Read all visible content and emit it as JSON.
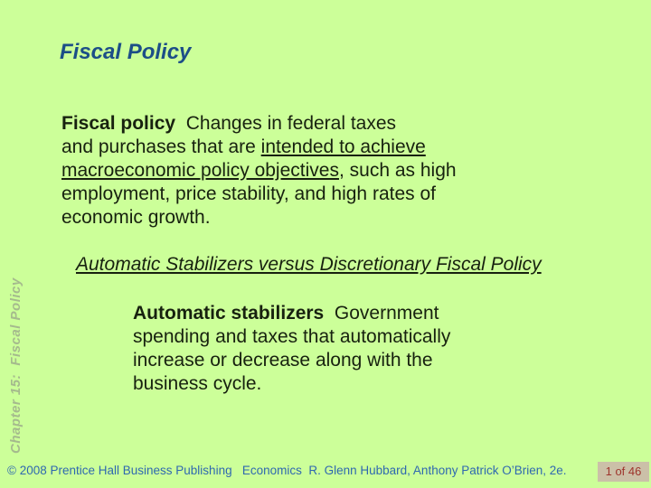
{
  "slide": {
    "title": "Fiscal Policy",
    "definition_fiscal": {
      "term": "Fiscal policy",
      "before_underline": "  Changes in federal taxes\nand purchases that are ",
      "underlined": "intended to achieve\nmacroeconomic policy objectives",
      "after_underline": ", such as high\nemployment, price stability, and high rates of\neconomic growth."
    },
    "section_heading": "Automatic Stabilizers versus Discretionary Fiscal Policy",
    "definition_stabilizers": {
      "term": "Automatic stabilizers",
      "body": "  Government\nspending and taxes that automatically\nincrease or decrease along with the\nbusiness cycle."
    },
    "chapter_label": "Chapter 15:  Fiscal Policy",
    "footer": {
      "copyright": "© 2008 Prentice Hall Business Publishing   Economics  R. Glenn Hubbard, Anthony Patrick O’Brien, 2e.",
      "page_indicator": "1 of 46"
    },
    "colors": {
      "background": "#CCFF99",
      "title": "#1C4E87",
      "body_text": "#17210F",
      "chapter_label": "#A5BA8D",
      "footer_text": "#2F68B0",
      "badge_background": "#CBC0A8",
      "badge_text": "#9E342C"
    }
  }
}
